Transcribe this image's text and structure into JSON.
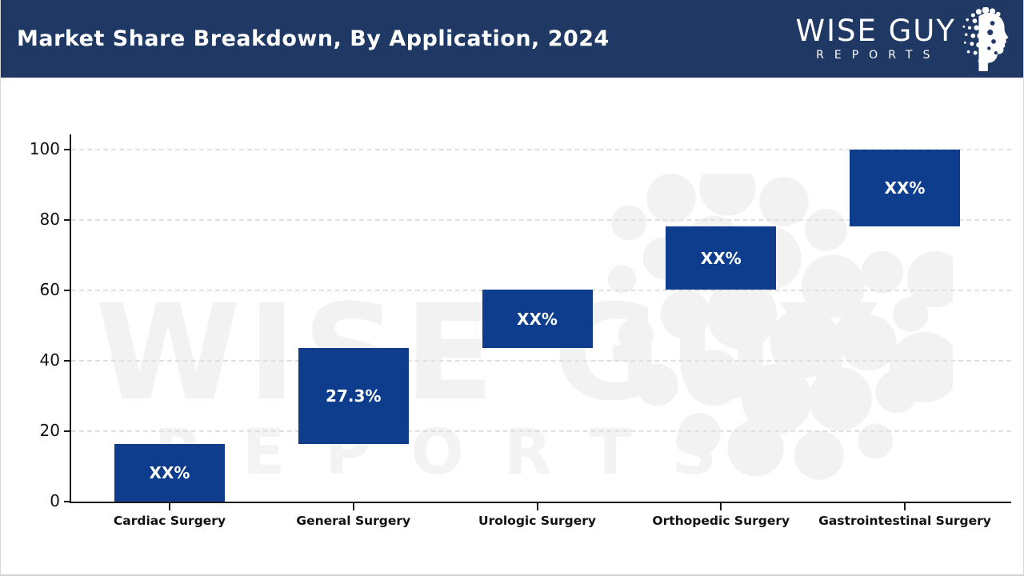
{
  "header": {
    "title": "Market Share Breakdown, By Application, 2024",
    "logo": {
      "brand_line1": "WISE GUY",
      "brand_line2": "REPORTS"
    }
  },
  "watermark": {
    "line1": "WISE GUY",
    "line2": "REPORTS"
  },
  "colors": {
    "header_bg": "#1f3864",
    "bar_blue": "#0d3d8c",
    "axis_black": "#1a1a1a",
    "grid_gray": "#e0e0e0",
    "watermark_gray": "#f2f2f2",
    "bar_label_white": "#ffffff"
  },
  "chart_data": {
    "type": "bar",
    "subtype": "waterfall",
    "title": "Market Share Breakdown, By Application, 2024",
    "xlabel": "",
    "ylabel": "",
    "ylim": [
      0,
      105
    ],
    "yticks": [
      0,
      20,
      40,
      60,
      80,
      100
    ],
    "grid": "horizontal-dashed",
    "legend": "none",
    "bar_color": "#0d3d8c",
    "bar_label_color": "#ffffff",
    "categories": [
      "Cardiac Surgery",
      "General Surgery",
      "Urologic Surgery",
      "Orthopedic Surgery",
      "Gastrointestinal Surgery"
    ],
    "segments": [
      {
        "category": "Cardiac Surgery",
        "start": 0,
        "end": 16.3,
        "value_label": "XX%"
      },
      {
        "category": "General Surgery",
        "start": 16.3,
        "end": 43.6,
        "value_label": "27.3%"
      },
      {
        "category": "Urologic Surgery",
        "start": 43.6,
        "end": 60.2,
        "value_label": "XX%"
      },
      {
        "category": "Orthopedic Surgery",
        "start": 60.2,
        "end": 78.1,
        "value_label": "XX%"
      },
      {
        "category": "Gastrointestinal Surgery",
        "start": 78.1,
        "end": 100,
        "value_label": "XX%"
      }
    ]
  }
}
